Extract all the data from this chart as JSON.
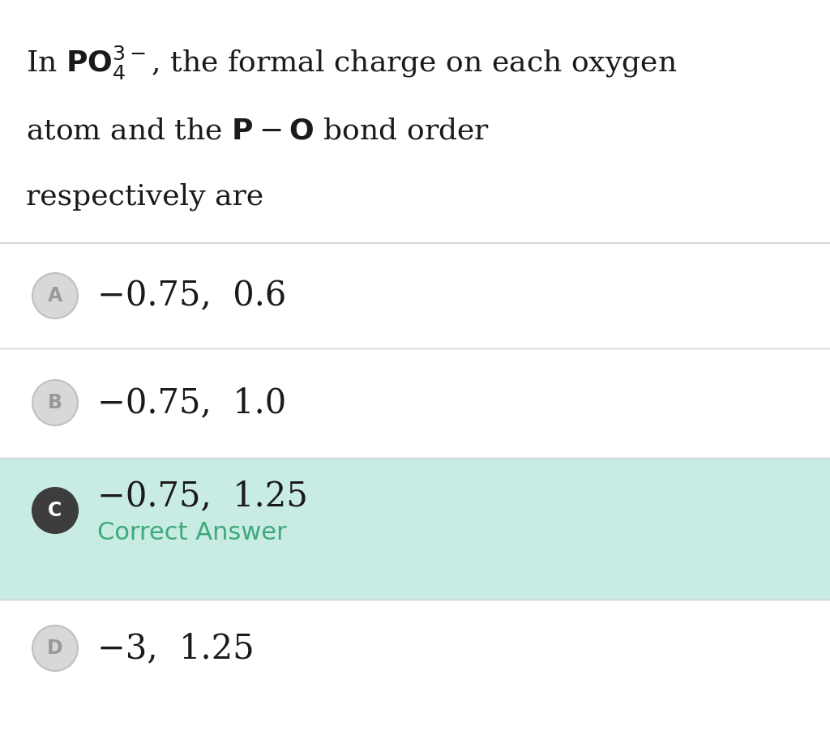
{
  "bg_color": "#ffffff",
  "correct_bg": "#c8ebe3",
  "divider_color": "#d0d0d0",
  "option_circle_inactive_face": "#d8d8d8",
  "option_circle_inactive_edge": "#c0c0c0",
  "option_circle_active_face": "#3d3d3d",
  "option_letter_inactive": "#999999",
  "option_letter_active": "#ffffff",
  "correct_answer_text_color": "#3daa7a",
  "main_text_color": "#1a1a1a",
  "options": [
    {
      "label": "A",
      "text": "−0.75,  0.6",
      "correct": false
    },
    {
      "label": "B",
      "text": "−0.75,  1.0",
      "correct": false
    },
    {
      "label": "C",
      "text": "−0.75,  1.25",
      "correct": true
    },
    {
      "label": "D",
      "text": "−3,  1.25",
      "correct": false
    }
  ],
  "correct_answer_label": "Correct Answer",
  "question_lines": [
    "In $\\mathbf{PO}_4^{3-}$, the formal charge on each oxygen",
    "atom and the $\\mathbf{P} - \\mathbf{O}$ bond order",
    "respectively are"
  ]
}
